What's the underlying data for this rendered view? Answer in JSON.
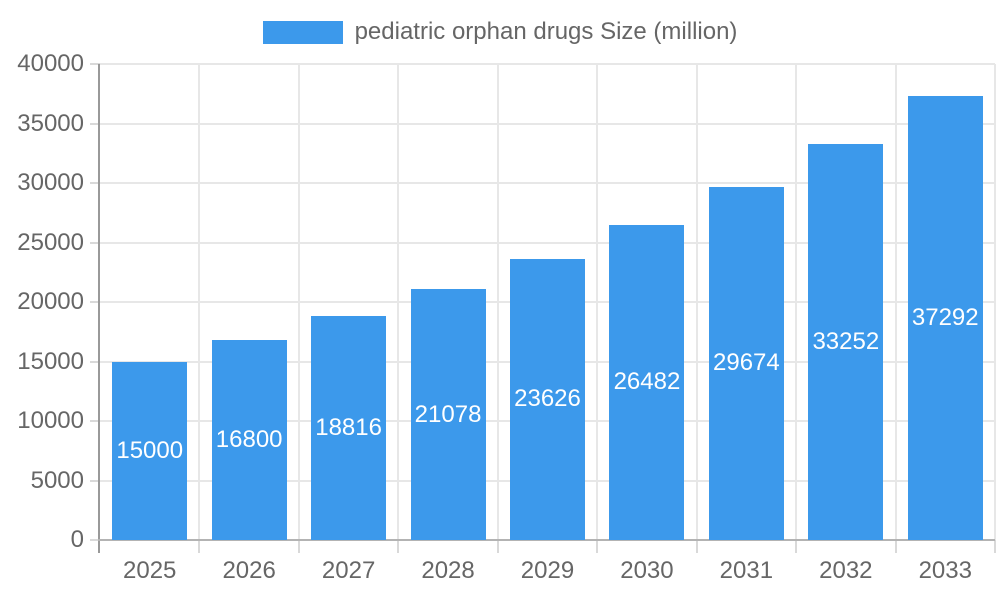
{
  "legend": {
    "label": "pediatric orphan drugs Size (million)",
    "swatch_color": "#3C99EB"
  },
  "chart_data": {
    "type": "bar",
    "title": "pediatric orphan drugs Size (million)",
    "series_name": "pediatric orphan drugs Size (million)",
    "categories": [
      "2025",
      "2026",
      "2027",
      "2028",
      "2029",
      "2030",
      "2031",
      "2032",
      "2033"
    ],
    "values": [
      15000,
      16800,
      18816,
      21078,
      23626,
      26482,
      29674,
      33252,
      37292
    ],
    "xlabel": "",
    "ylabel": "",
    "ylim": [
      0,
      40000
    ],
    "ytick_step": 5000,
    "ytick_labels": [
      "0",
      "5000",
      "10000",
      "15000",
      "20000",
      "25000",
      "30000",
      "35000",
      "40000"
    ],
    "grid": true,
    "legend_position": "top",
    "colors": {
      "bar": "#3C99EB",
      "bar_label": "#ffffff",
      "axis_text": "#666666",
      "gridline": "#e7e7e7",
      "tick_mark": "#d9d9d9",
      "y_axis_line": "#999999",
      "x_axis_line": "#b3b3b3"
    }
  }
}
